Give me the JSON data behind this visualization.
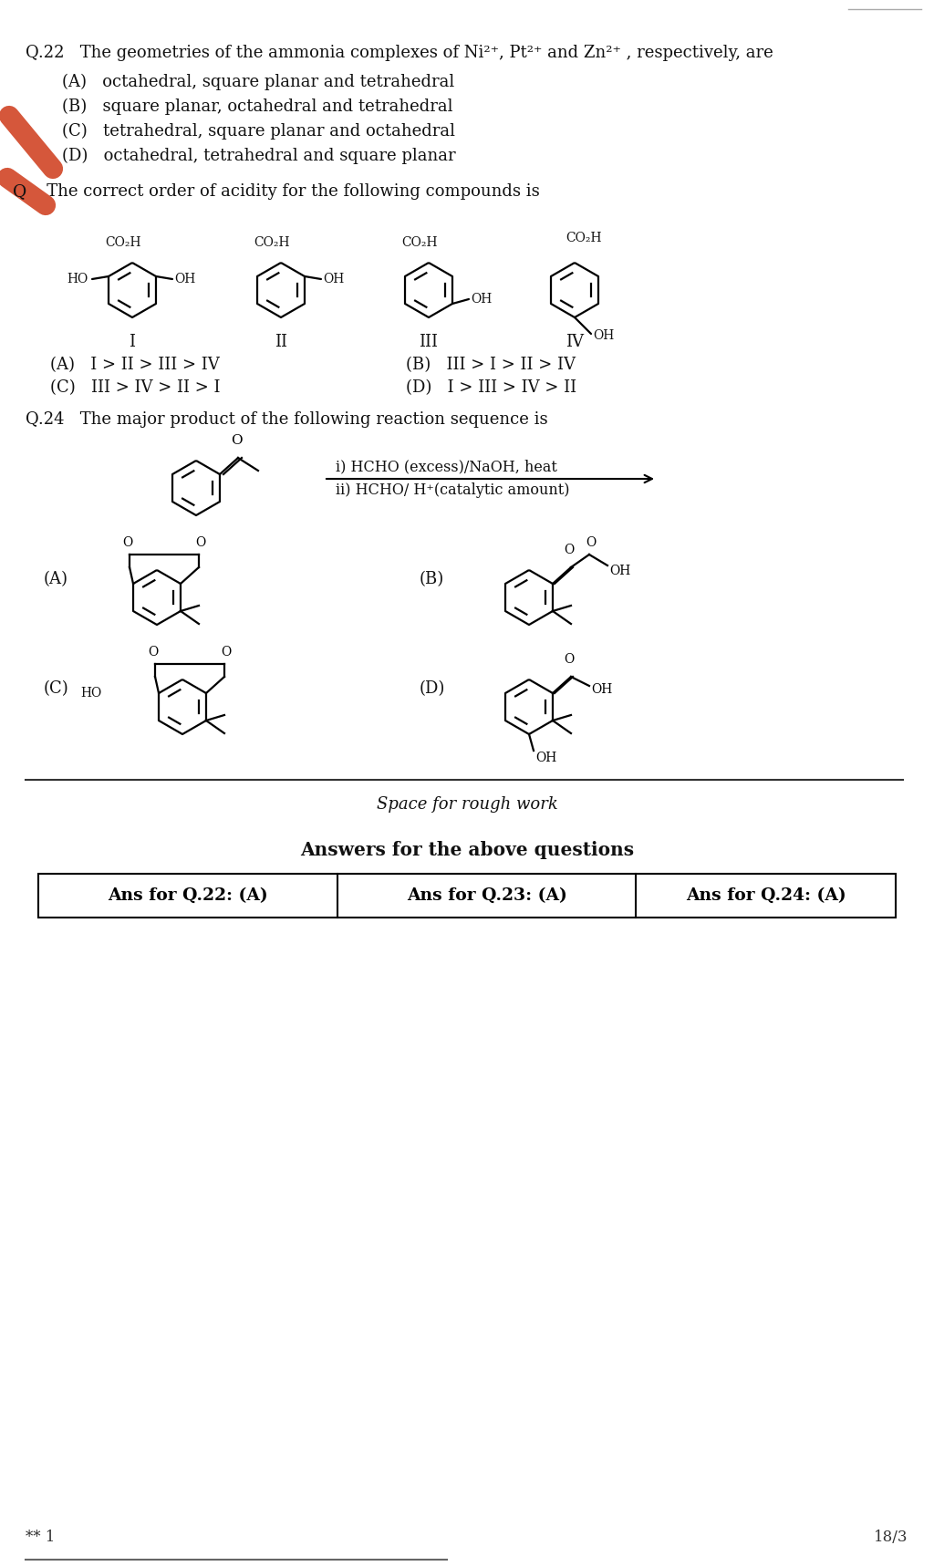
{
  "bg_color": "#ffffff",
  "red_color": "#d04020",
  "q22_line": "Q.22   The geometries of the ammonia complexes of Ni²⁺, Pt²⁺ and Zn²⁺ , respectively, are",
  "q22_A": "(A)   octahedral, square planar and tetrahedral",
  "q22_B": "(B)   square planar, octahedral and tetrahedral",
  "q22_C": "(C)   tetrahedral, square planar and octahedral",
  "q22_D": "(D)   octahedral, tetrahedral and square planar",
  "q23_intro": "The correct order of acidity for the following compounds is",
  "q23_A": "(A)   I > II > III > IV",
  "q23_B": "(B)   III > I > II > IV",
  "q23_C": "(C)   III > IV > II > I",
  "q23_D": "(D)   I > III > IV > II",
  "q24_line": "Q.24   The major product of the following reaction sequence is",
  "q24_r1": "i) HCHO (excess)/NaOH, heat",
  "q24_r2": "ii) HCHO/ H⁺(catalytic amount)",
  "space_label": "Space for rough work",
  "ans_header": "Answers for the above questions",
  "ans1": "Ans for Q.22: (A)",
  "ans2": "Ans for Q.23: (A)",
  "ans3": "Ans for Q.24: (A)",
  "footnote": "** 1",
  "page": "18/3",
  "struct_label_I": "I",
  "struct_label_II": "II",
  "struct_label_III": "III",
  "struct_label_IV": "IV"
}
